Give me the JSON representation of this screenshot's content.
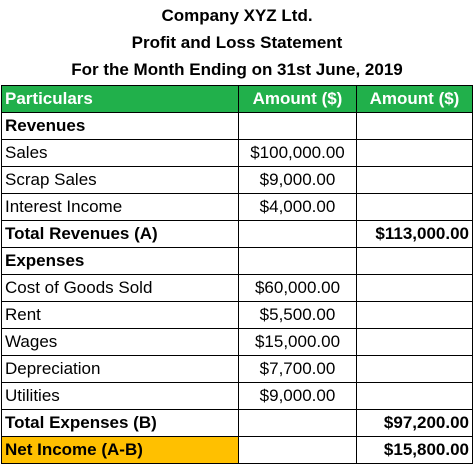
{
  "header": {
    "company": "Company XYZ Ltd.",
    "statement": "Profit and Loss Statement",
    "period": "For the Month Ending on 31st June, 2019"
  },
  "colors": {
    "header_green": "#21b04b",
    "net_income_highlight": "#ffc000"
  },
  "table": {
    "columns": [
      "Particulars",
      "Amount ($)",
      "Amount ($)"
    ],
    "revenues_heading": "Revenues",
    "revenues": [
      {
        "label": "Sales",
        "amount": "$100,000.00"
      },
      {
        "label": "Scrap Sales",
        "amount": "$9,000.00"
      },
      {
        "label": "Interest Income",
        "amount": "$4,000.00"
      }
    ],
    "total_revenues": {
      "label": "Total Revenues (A)",
      "total": "$113,000.00"
    },
    "expenses_heading": "Expenses",
    "expenses": [
      {
        "label": "Cost of Goods Sold",
        "amount": "$60,000.00"
      },
      {
        "label": "Rent",
        "amount": "$5,500.00"
      },
      {
        "label": "Wages",
        "amount": "$15,000.00"
      },
      {
        "label": "Depreciation",
        "amount": "$7,700.00"
      },
      {
        "label": "Utilities",
        "amount": "$9,000.00"
      }
    ],
    "total_expenses": {
      "label": "Total Expenses (B)",
      "total": "$97,200.00"
    },
    "net_income": {
      "label": "Net Income (A-B)",
      "total": "$15,800.00"
    }
  }
}
